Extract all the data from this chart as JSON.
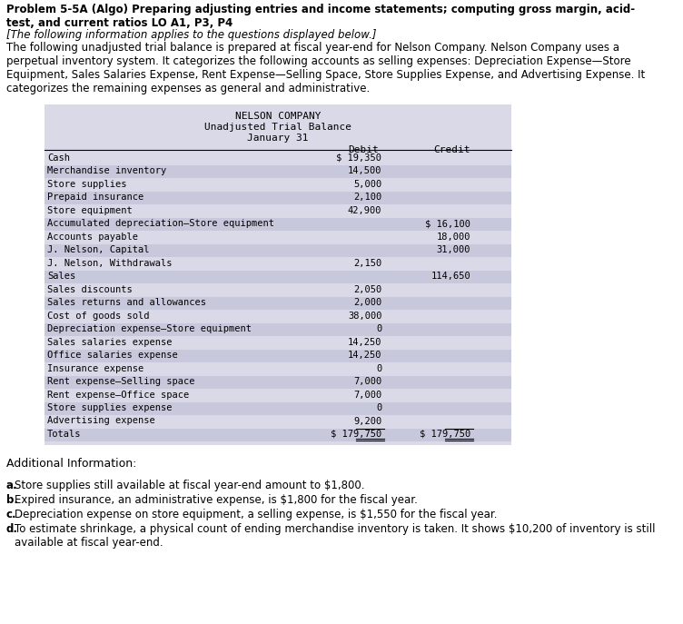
{
  "title_bold": "Problem 5-5A (Algo) Preparing adjusting entries and income statements; computing gross margin, acid-\ntest, and current ratios LO A1, P3, P4",
  "italic_line": "[The following information applies to the questions displayed below.]",
  "body_text": "The following unadjusted trial balance is prepared at fiscal year-end for Nelson Company. Nelson Company uses a\nperpetual inventory system. It categorizes the following accounts as selling expenses: Depreciation Expense—Store\nEquipment, Sales Salaries Expense, Rent Expense—Selling Space, Store Supplies Expense, and Advertising Expense. It\ncategorizes the remaining expenses as general and administrative.",
  "table_header_line1": "NELSON COMPANY",
  "table_header_line2": "Unadjusted Trial Balance",
  "table_header_line3": "January 31",
  "col_debit": "Debit",
  "col_credit": "Credit",
  "table_bg": "#d9d9e8",
  "rows": [
    {
      "account": "Cash",
      "debit": "$ 19,350",
      "credit": ""
    },
    {
      "account": "Merchandise inventory",
      "debit": "14,500",
      "credit": ""
    },
    {
      "account": "Store supplies",
      "debit": "5,000",
      "credit": ""
    },
    {
      "account": "Prepaid insurance",
      "debit": "2,100",
      "credit": ""
    },
    {
      "account": "Store equipment",
      "debit": "42,900",
      "credit": ""
    },
    {
      "account": "Accumulated depreciation—Store equipment",
      "debit": "",
      "credit": "$ 16,100"
    },
    {
      "account": "Accounts payable",
      "debit": "",
      "credit": "18,000"
    },
    {
      "account": "J. Nelson, Capital",
      "debit": "",
      "credit": "31,000"
    },
    {
      "account": "J. Nelson, Withdrawals",
      "debit": "2,150",
      "credit": ""
    },
    {
      "account": "Sales",
      "debit": "",
      "credit": "114,650"
    },
    {
      "account": "Sales discounts",
      "debit": "2,050",
      "credit": ""
    },
    {
      "account": "Sales returns and allowances",
      "debit": "2,000",
      "credit": ""
    },
    {
      "account": "Cost of goods sold",
      "debit": "38,000",
      "credit": ""
    },
    {
      "account": "Depreciation expense—Store equipment",
      "debit": "0",
      "credit": ""
    },
    {
      "account": "Sales salaries expense",
      "debit": "14,250",
      "credit": ""
    },
    {
      "account": "Office salaries expense",
      "debit": "14,250",
      "credit": ""
    },
    {
      "account": "Insurance expense",
      "debit": "0",
      "credit": ""
    },
    {
      "account": "Rent expense—Selling space",
      "debit": "7,000",
      "credit": ""
    },
    {
      "account": "Rent expense—Office space",
      "debit": "7,000",
      "credit": ""
    },
    {
      "account": "Store supplies expense",
      "debit": "0",
      "credit": ""
    },
    {
      "account": "Advertising expense",
      "debit": "9,200",
      "credit": ""
    },
    {
      "account": "Totals",
      "debit": "$ 179,750",
      "credit": "$ 179,750"
    }
  ],
  "additional_info_label": "Additional Information:",
  "additional_info_items": [
    {
      "label": "a.",
      "text": "Store supplies still available at fiscal year-end amount to $1,800."
    },
    {
      "label": "b.",
      "text": "Expired insurance, an administrative expense, is $1,800 for the fiscal year."
    },
    {
      "label": "c.",
      "text": "Depreciation expense on store equipment, a selling expense, is $1,550 for the fiscal year."
    },
    {
      "label": "d.",
      "text": "To estimate shrinkage, a physical count of ending merchandise inventory is taken. It shows $10,200 of inventory is still\navailable at fiscal year-end."
    }
  ]
}
